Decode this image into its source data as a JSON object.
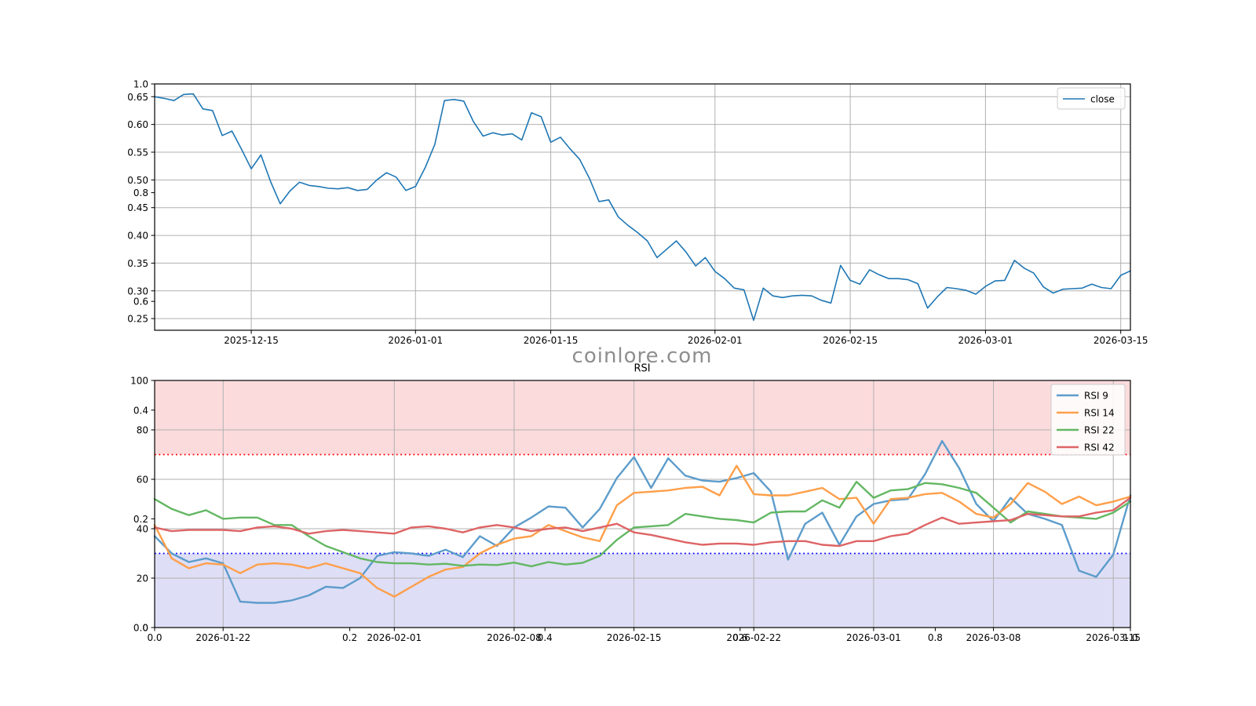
{
  "watermark": "coinlore.com",
  "colors": {
    "close": "#1f77b4",
    "rsi9": "#5d9ccb",
    "rsi14": "#ff9f4a",
    "rsi22": "#63b763",
    "rsi42": "#de6465",
    "overbought_band": "#fcdbdd",
    "oversold_band": "#dedef6",
    "overbought_line": "#ff0000",
    "oversold_line": "#0000ff",
    "grid": "#b0b0b0",
    "spine": "#000000",
    "tick_text": "#000000",
    "watermark_color": "#8e8e8e",
    "legend_border": "#cccccc"
  },
  "ghost_axis": {
    "y_labels": [
      {
        "f": 1.0,
        "label": "1.0"
      },
      {
        "f": 0.8,
        "label": "0.8"
      },
      {
        "f": 0.6,
        "label": "0.6"
      },
      {
        "f": 0.4,
        "label": "0.4"
      },
      {
        "f": 0.2,
        "label": "0.2"
      },
      {
        "f": 0.0,
        "label": "0.0"
      }
    ],
    "x_labels": [
      {
        "f": 0.0,
        "label": "0.0"
      },
      {
        "f": 0.2,
        "label": "0.2"
      },
      {
        "f": 0.4,
        "label": "0.4"
      },
      {
        "f": 0.6,
        "label": "0.6"
      },
      {
        "f": 0.8,
        "label": "0.8"
      },
      {
        "f": 1.0,
        "label": "1.0"
      }
    ]
  },
  "chart_data": [
    {
      "type": "line",
      "title": "",
      "legend_position": "upper right",
      "grid": true,
      "x_start": "2025-12-05",
      "x_end": "2026-03-16",
      "x_freq": "daily",
      "ylim": [
        0.229,
        0.673
      ],
      "yticks": [
        {
          "v": 0.65,
          "label": "0.65"
        },
        {
          "v": 0.6,
          "label": "0.60"
        },
        {
          "v": 0.55,
          "label": "0.55"
        },
        {
          "v": 0.5,
          "label": "0.50"
        },
        {
          "v": 0.45,
          "label": "0.45"
        },
        {
          "v": 0.4,
          "label": "0.40"
        },
        {
          "v": 0.35,
          "label": "0.35"
        },
        {
          "v": 0.3,
          "label": "0.30"
        },
        {
          "v": 0.25,
          "label": "0.25"
        }
      ],
      "xticks": [
        {
          "i": 10,
          "label": "2025-12-15"
        },
        {
          "i": 27,
          "label": "2026-01-01"
        },
        {
          "i": 41,
          "label": "2026-01-15"
        },
        {
          "i": 58,
          "label": "2026-02-01"
        },
        {
          "i": 72,
          "label": "2026-02-15"
        },
        {
          "i": 86,
          "label": "2026-03-01"
        },
        {
          "i": 100,
          "label": "2026-03-15"
        }
      ],
      "series": [
        {
          "name": "close",
          "color_key": "close",
          "width": 1.6,
          "values": [
            0.65,
            0.647,
            0.643,
            0.654,
            0.655,
            0.628,
            0.625,
            0.58,
            0.588,
            0.555,
            0.52,
            0.545,
            0.497,
            0.457,
            0.48,
            0.496,
            0.49,
            0.488,
            0.485,
            0.484,
            0.486,
            0.481,
            0.483,
            0.5,
            0.513,
            0.505,
            0.481,
            0.488,
            0.522,
            0.564,
            0.643,
            0.645,
            0.642,
            0.605,
            0.579,
            0.585,
            0.581,
            0.583,
            0.572,
            0.621,
            0.614,
            0.568,
            0.577,
            0.556,
            0.537,
            0.503,
            0.461,
            0.464,
            0.433,
            0.418,
            0.405,
            0.39,
            0.36,
            0.375,
            0.39,
            0.37,
            0.345,
            0.36,
            0.335,
            0.322,
            0.305,
            0.302,
            0.247,
            0.305,
            0.291,
            0.288,
            0.291,
            0.292,
            0.291,
            0.283,
            0.278,
            0.346,
            0.319,
            0.312,
            0.338,
            0.329,
            0.322,
            0.322,
            0.32,
            0.313,
            0.269,
            0.289,
            0.306,
            0.304,
            0.301,
            0.294,
            0.308,
            0.318,
            0.319,
            0.355,
            0.341,
            0.332,
            0.307,
            0.296,
            0.303,
            0.304,
            0.305,
            0.312,
            0.306,
            0.304,
            0.328,
            0.336
          ]
        }
      ]
    },
    {
      "type": "line",
      "title": "RSI",
      "legend_position": "upper right",
      "grid": true,
      "x_start": "2026-01-18",
      "x_end": "2026-03-16",
      "x_freq": "daily",
      "ylim": [
        0,
        100
      ],
      "yticks": [
        {
          "v": 100,
          "label": "100"
        },
        {
          "v": 80,
          "label": "80"
        },
        {
          "v": 60,
          "label": "60"
        },
        {
          "v": 40,
          "label": "40"
        },
        {
          "v": 20,
          "label": "20"
        },
        {
          "v": 0,
          "label": "0"
        }
      ],
      "xticks": [
        {
          "i": 4,
          "label": "2026-01-22"
        },
        {
          "i": 14,
          "label": "2026-02-01"
        },
        {
          "i": 21,
          "label": "2026-02-08"
        },
        {
          "i": 28,
          "label": "2026-02-15"
        },
        {
          "i": 35,
          "label": "2026-02-22"
        },
        {
          "i": 42,
          "label": "2026-03-01"
        },
        {
          "i": 49,
          "label": "2026-03-08"
        },
        {
          "i": 56,
          "label": "2026-03-15"
        }
      ],
      "bands": [
        {
          "from": 70,
          "to": 100,
          "color_key": "overbought_band"
        },
        {
          "from": 0,
          "to": 30,
          "color_key": "oversold_band"
        }
      ],
      "hlines": [
        {
          "v": 70,
          "style": "dotted",
          "color_key": "overbought_line"
        },
        {
          "v": 30,
          "style": "dotted",
          "color_key": "oversold_line"
        }
      ],
      "series": [
        {
          "name": "RSI 9",
          "color_key": "rsi9",
          "width": 2.4,
          "values": [
            37,
            30,
            26.5,
            28,
            26,
            10.5,
            10,
            10,
            11,
            13,
            16.5,
            16,
            20,
            29,
            30.5,
            30,
            29,
            31.5,
            28.5,
            37,
            33,
            40.5,
            44.5,
            49,
            48.5,
            40.5,
            48,
            60.5,
            69,
            56.5,
            68.5,
            61.5,
            59.5,
            59,
            60.5,
            62.5,
            55,
            27.5,
            42,
            46.5,
            33.5,
            45,
            50,
            51.5,
            52,
            62,
            75.5,
            64.5,
            50,
            43,
            52.5,
            46,
            44,
            41.5,
            23,
            20.5,
            29.5,
            53.5
          ]
        },
        {
          "name": "RSI 14",
          "color_key": "rsi14",
          "width": 2.4,
          "values": [
            41.5,
            28,
            24,
            26,
            25.5,
            22,
            25.5,
            26,
            25.5,
            24,
            26,
            24,
            22,
            16,
            12.5,
            16.5,
            20.5,
            23.5,
            24.5,
            30,
            33.5,
            36,
            37,
            41.5,
            39,
            36.5,
            35,
            49.5,
            54.5,
            55,
            55.5,
            56.5,
            57,
            53.5,
            65.5,
            54,
            53.5,
            53.5,
            55,
            56.5,
            52,
            52.5,
            42,
            52,
            52.5,
            54,
            54.5,
            51,
            46,
            44.5,
            50,
            58.5,
            55,
            50,
            53,
            49.5,
            51,
            53
          ]
        },
        {
          "name": "RSI 22",
          "color_key": "rsi22",
          "width": 2.4,
          "values": [
            52,
            48,
            45.5,
            47.5,
            44,
            44.5,
            44.5,
            41.5,
            41.5,
            37,
            33,
            30.5,
            28,
            26.5,
            26,
            26,
            25.5,
            25.8,
            25,
            25.5,
            25.3,
            26.3,
            24.8,
            26.5,
            25.5,
            26.2,
            29,
            35.5,
            40.5,
            41,
            41.5,
            46,
            45,
            44,
            43.5,
            42.5,
            46.5,
            47,
            47,
            51.5,
            48.5,
            59,
            52.5,
            55.5,
            56,
            58.5,
            58,
            56.5,
            54.5,
            48.5,
            42.5,
            47,
            46,
            45,
            44.5,
            44,
            46.5,
            51
          ]
        },
        {
          "name": "RSI 42",
          "color_key": "rsi42",
          "width": 2.4,
          "values": [
            40.5,
            39,
            39.5,
            39.5,
            39.5,
            39,
            40.5,
            41,
            40,
            38,
            39,
            39.5,
            39,
            38.5,
            38,
            40.5,
            41,
            40,
            38.5,
            40.5,
            41.5,
            40.5,
            39,
            40,
            40.5,
            39,
            40.5,
            42,
            38.5,
            37.5,
            36,
            34.5,
            33.5,
            34,
            34,
            33.5,
            34.5,
            35,
            35,
            33.5,
            33,
            35,
            35,
            37,
            38,
            41.5,
            44.5,
            42,
            42.5,
            43,
            43.5,
            46,
            45.5,
            45,
            45,
            46.5,
            47.5,
            52.5
          ]
        }
      ]
    }
  ]
}
